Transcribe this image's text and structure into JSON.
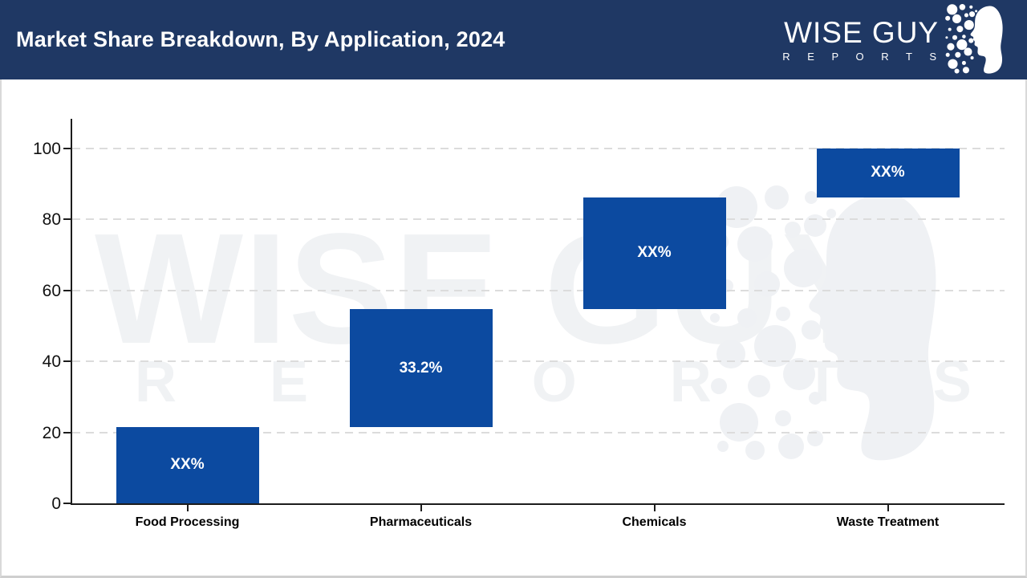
{
  "header": {
    "title": "Market Share Breakdown, By Application, 2024",
    "logo": {
      "wordmark": "WISE GUY",
      "subtext": "R E P O R T S"
    }
  },
  "watermark": {
    "wordmark": "WISE GUY",
    "subtext": "R E P O R T S"
  },
  "chart_data": {
    "type": "bar",
    "subtype": "waterfall",
    "title": "Market Share Breakdown, By Application, 2024",
    "categories": [
      "Food Processing",
      "Pharmaceuticals",
      "Chemicals",
      "Waste Treatment"
    ],
    "segments": [
      {
        "category": "Food Processing",
        "start": 0,
        "end": 21.5,
        "label": "XX%"
      },
      {
        "category": "Pharmaceuticals",
        "start": 21.5,
        "end": 54.7,
        "label": "33.2%"
      },
      {
        "category": "Chemicals",
        "start": 54.7,
        "end": 86.3,
        "label": "XX%"
      },
      {
        "category": "Waste Treatment",
        "start": 86.3,
        "end": 100,
        "label": "XX%"
      }
    ],
    "xlabel": "",
    "ylabel": "",
    "ylim": [
      0,
      107
    ],
    "yticks": [
      0,
      20,
      40,
      60,
      80,
      100
    ],
    "grid": "horizontal-dashed",
    "legend": "none",
    "colors": {
      "bar": "#0c4aa0",
      "bar_label": "#ffffff",
      "axis": "#1c1c1c",
      "gridline": "#dcdcdc",
      "header_bg": "#1f3864",
      "watermark": "#f0f2f4"
    }
  }
}
